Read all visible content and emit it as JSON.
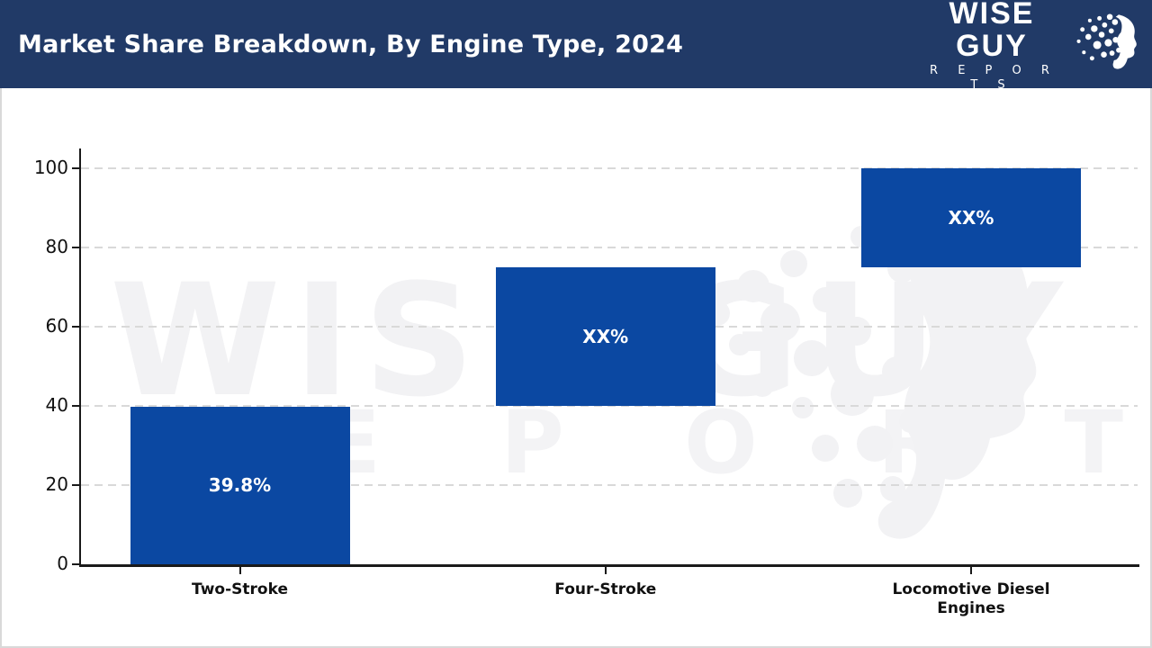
{
  "header": {
    "title": "Market Share Breakdown, By Engine Type, 2024",
    "bg_color": "#213a67",
    "logo": {
      "line1": "WISE GUY",
      "line2": "R E P O R T S",
      "icon": "dotted-face-profile-icon",
      "color": "#ffffff"
    }
  },
  "watermark": {
    "line1": "WISE GUY",
    "line2": "R E P O R T S",
    "icon": "dotted-face-profile-watermark",
    "color": "#f2f2f4"
  },
  "chart_data": {
    "type": "bar",
    "variant": "floating-waterfall-segments",
    "title": "",
    "xlabel": "",
    "ylabel": "",
    "categories": [
      "Two-Stroke",
      "Four-Stroke",
      "Locomotive Diesel Engines"
    ],
    "segments": [
      {
        "category": "Two-Stroke",
        "start": 0,
        "end": 39.8,
        "label": "39.8%"
      },
      {
        "category": "Four-Stroke",
        "start": 40,
        "end": 75,
        "label": "XX%"
      },
      {
        "category": "Locomotive Diesel Engines",
        "start": 75,
        "end": 100,
        "label": "XX%"
      }
    ],
    "ylim": [
      0,
      100
    ],
    "yticks": [
      0,
      20,
      40,
      60,
      80,
      100
    ],
    "grid": "horizontal-dashed",
    "grid_color": "#d9d9d9",
    "bar_color": "#0b48a2",
    "bar_label_color": "#ffffff",
    "axis_color": "#1a1a1a",
    "legend": "none"
  }
}
